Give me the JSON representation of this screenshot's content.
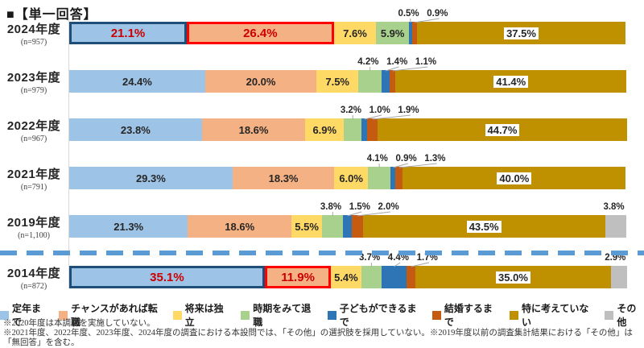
{
  "title": "■【単一回答】",
  "chart_data": {
    "type": "bar",
    "stacked": true,
    "orientation": "horizontal",
    "value_unit": "%",
    "xlim": [
      0,
      100
    ],
    "categories": [
      "定年まで",
      "チャンスがあれば転職",
      "将来は独立",
      "時期をみて退職",
      "子どもができるまで",
      "結婚するまで",
      "特に考えていない",
      "その他"
    ],
    "series_colors": [
      "#9DC3E6",
      "#F4B183",
      "#FFD966",
      "#A9D18E",
      "#2E75B6",
      "#C55A11",
      "#BF9000",
      "#BFBFBF"
    ],
    "rows": [
      {
        "year": "2024年度",
        "n": "(n=957)",
        "values": [
          21.1,
          26.4,
          7.6,
          5.9,
          0.5,
          0.9,
          37.5,
          null
        ],
        "highlighted": true
      },
      {
        "year": "2023年度",
        "n": "(n=979)",
        "values": [
          24.4,
          20.0,
          7.5,
          4.2,
          1.4,
          1.1,
          41.4,
          null
        ],
        "highlighted": false
      },
      {
        "year": "2022年度",
        "n": "(n=967)",
        "values": [
          23.8,
          18.6,
          6.9,
          3.2,
          1.0,
          1.9,
          44.7,
          null
        ],
        "highlighted": false
      },
      {
        "year": "2021年度",
        "n": "(n=791)",
        "values": [
          29.3,
          18.3,
          6.0,
          4.1,
          0.9,
          1.3,
          40.0,
          null
        ],
        "highlighted": false
      },
      {
        "year": "2019年度",
        "n": "(n=1,100)",
        "values": [
          21.3,
          18.6,
          5.5,
          3.8,
          1.5,
          2.0,
          43.5,
          3.8
        ],
        "highlighted": false
      },
      {
        "year": "2014年度",
        "n": "(n=872)",
        "values": [
          35.1,
          11.9,
          5.4,
          3.7,
          4.4,
          1.7,
          35.0,
          2.9
        ],
        "highlighted": true
      }
    ]
  },
  "legend": {
    "items": [
      {
        "label": "定年まで",
        "color": "#9DC3E6"
      },
      {
        "label": "チャンスがあれば転職",
        "color": "#F4B183"
      },
      {
        "label": "将来は独立",
        "color": "#FFD966"
      },
      {
        "label": "時期をみて退職",
        "color": "#A9D18E"
      },
      {
        "label": "子どもができるまで",
        "color": "#2E75B6"
      },
      {
        "label": "結婚するまで",
        "color": "#C55A11"
      },
      {
        "label": "特に考えていない",
        "color": "#BF9000"
      },
      {
        "label": "その他",
        "color": "#BFBFBF"
      }
    ]
  },
  "separator": {
    "color": "#5B9BD5",
    "position": "between 2019年度 and 2014年度"
  },
  "highlight": {
    "first_segment_border": "#1F4E79",
    "second_segment_border": "#FF0000",
    "text_color": "#CC0000"
  },
  "footnotes": [
    "※2020年度は本調査を実施していない。",
    "※2021年度、2022年度、2023年度、2024年度の調査における本設問では、「その他」の選択肢を採用していない。※2019年度以前の調査集計結果における「その他」は「無回答」を含む。"
  ]
}
